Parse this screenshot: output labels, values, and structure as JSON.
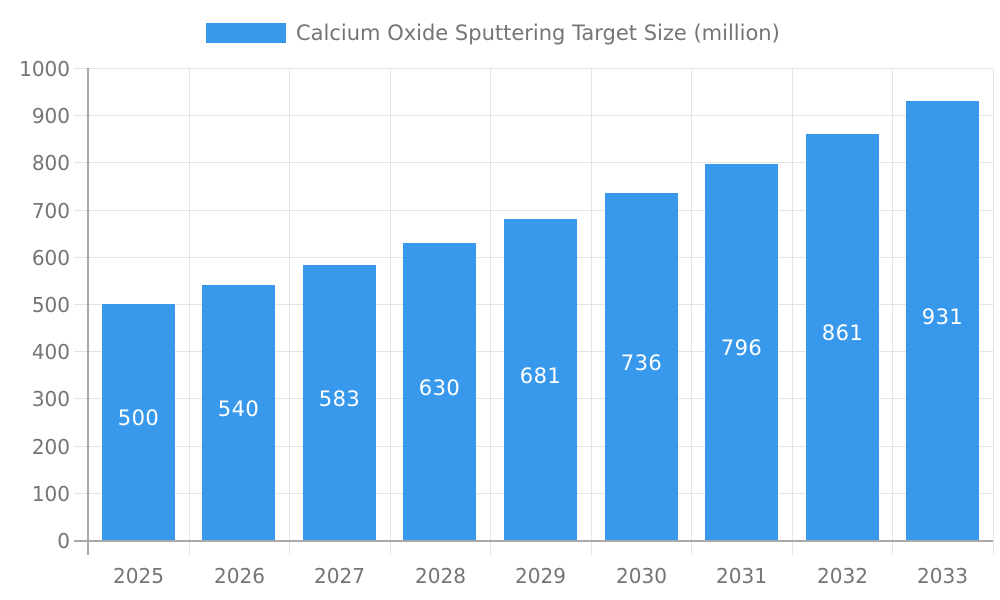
{
  "legend": {
    "label": "Calcium Oxide Sputtering Target Size (million)"
  },
  "chart_data": {
    "type": "bar",
    "title": "Calcium Oxide Sputtering Target Size (million)",
    "categories": [
      "2025",
      "2026",
      "2027",
      "2028",
      "2029",
      "2030",
      "2031",
      "2032",
      "2033"
    ],
    "series": [
      {
        "name": "Calcium Oxide Sputtering Target Size (million)",
        "values": [
          500,
          540,
          583,
          630,
          681,
          736,
          796,
          861,
          931
        ]
      }
    ],
    "values": [
      500,
      540,
      583,
      630,
      681,
      736,
      796,
      861,
      931
    ],
    "value_labels_position": "inside-center",
    "xlabel": "",
    "ylabel": "",
    "ylim": [
      0,
      1000
    ],
    "yticks": [
      0,
      100,
      200,
      300,
      400,
      500,
      600,
      700,
      800,
      900,
      1000
    ],
    "grid": true,
    "legend_position": "top"
  },
  "colors": {
    "bar": "#3899ec",
    "axis": "#a9a9a9",
    "gridline": "#e4e4e4",
    "tick_label": "#757575",
    "legend_text": "#757575",
    "value_label": "#ffffff",
    "background": "#ffffff"
  }
}
